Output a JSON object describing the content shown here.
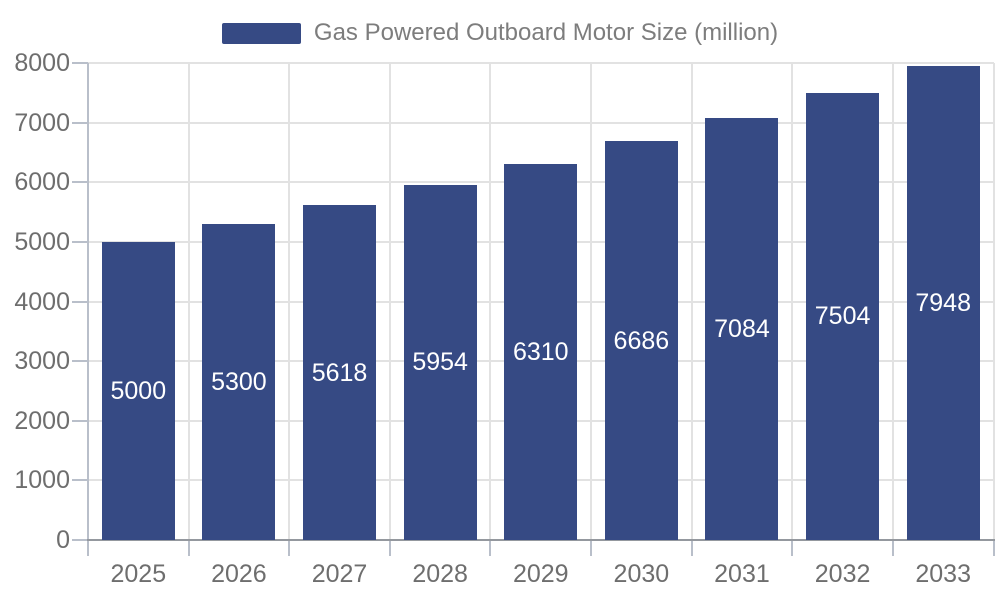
{
  "legend": {
    "label": "Gas Powered Outboard Motor Size (million)"
  },
  "colors": {
    "background": "#ffffff",
    "bar": "#364A84",
    "grid": "#e2e2e2",
    "y_axis_line": "#b9bfca",
    "tick": "#b9bfca",
    "x_axis_line": "#94989e",
    "tick_label_text": "#6e6e6e",
    "legend_text": "#7d7d7d",
    "bar_label_text": "#ffffff"
  },
  "chart_data": {
    "type": "bar",
    "title": "",
    "legend": [
      "Gas Powered Outboard Motor Size (million)"
    ],
    "legend_position": "top-center",
    "categories": [
      "2025",
      "2026",
      "2027",
      "2028",
      "2029",
      "2030",
      "2031",
      "2032",
      "2033"
    ],
    "series": [
      {
        "name": "Gas Powered Outboard Motor Size (million)",
        "values": [
          5000,
          5300,
          5618,
          5954,
          6310,
          6686,
          7084,
          7504,
          7948
        ]
      }
    ],
    "bar_labels_shown": true,
    "bar_label_position": "inside-center",
    "xlabel": "",
    "ylabel": "",
    "ylim": [
      0,
      8000
    ],
    "yticks": [
      0,
      1000,
      2000,
      3000,
      4000,
      5000,
      6000,
      7000,
      8000
    ],
    "grid": true
  }
}
